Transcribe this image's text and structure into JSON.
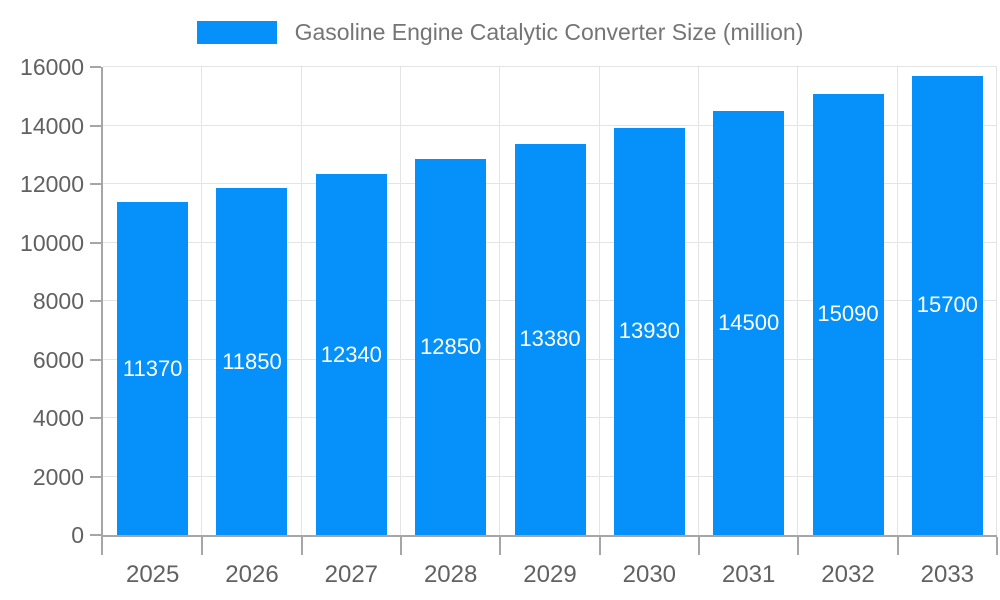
{
  "chart_data": {
    "type": "bar",
    "title": "Gasoline Engine Catalytic Converter Size (million)",
    "categories": [
      "2025",
      "2026",
      "2027",
      "2028",
      "2029",
      "2030",
      "2031",
      "2032",
      "2033"
    ],
    "values": [
      11370,
      11850,
      12340,
      12850,
      13380,
      13930,
      14500,
      15090,
      15700
    ],
    "yticks": [
      0,
      2000,
      4000,
      6000,
      8000,
      10000,
      12000,
      14000,
      16000
    ],
    "ylim": [
      0,
      16000
    ],
    "xlabel": "",
    "ylabel": "",
    "legend_position": "top-center",
    "grid": true,
    "bar_labels_inside": true,
    "bar_color": "#0590FA",
    "bar_label_color": "#ffffff",
    "axis_text_color": "#616161",
    "legend_text_color": "#757575",
    "grid_color": "#e4e4e4",
    "axis_line_color": "#a6a6a6",
    "background": "#ffffff"
  }
}
